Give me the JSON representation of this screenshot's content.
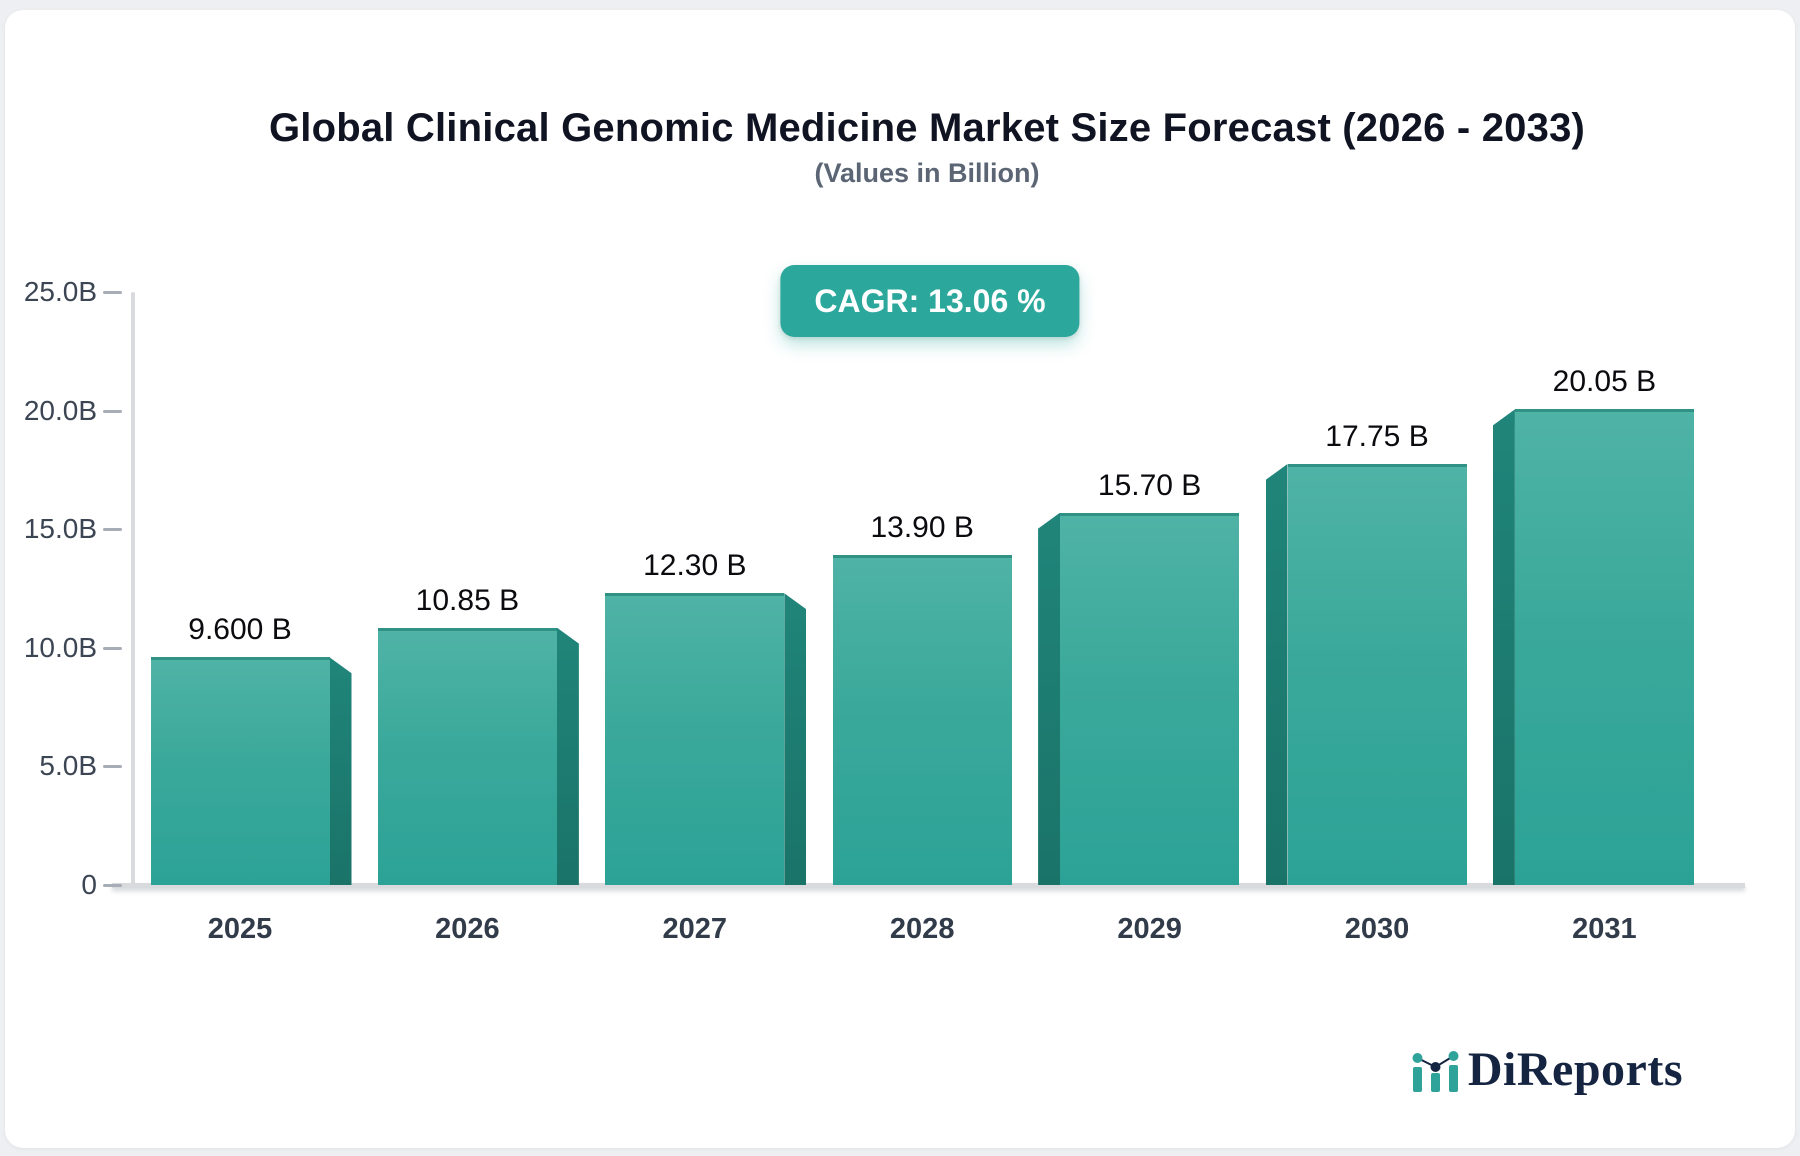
{
  "title": "Global Clinical Genomic Medicine Market Size Forecast (2026 - 2033)",
  "subtitle": "(Values in Billion)",
  "badge": {
    "label": "CAGR: 13.06 %"
  },
  "chart_data": {
    "type": "bar",
    "title": "Global Clinical Genomic Medicine Market Size Forecast (2026 - 2033)",
    "subtitle": "(Values in Billion)",
    "cagr_percent": 13.06,
    "categories": [
      "2025",
      "2026",
      "2027",
      "2028",
      "2029",
      "2030",
      "2031"
    ],
    "values": [
      9.6,
      10.85,
      12.3,
      13.9,
      15.7,
      17.75,
      20.05
    ],
    "bar_labels": [
      "9.600 B",
      "10.85 B",
      "12.30 B",
      "13.90 B",
      "15.70 B",
      "17.75 B",
      "20.05 B"
    ],
    "yticks": [
      {
        "value": 25,
        "label": "25.0B"
      },
      {
        "value": 20,
        "label": "20.0B"
      },
      {
        "value": 15,
        "label": "15.0B"
      },
      {
        "value": 10,
        "label": "10.0B"
      },
      {
        "value": 5,
        "label": "5.0B"
      },
      {
        "value": 0,
        "label": "0"
      }
    ],
    "ylim": [
      0,
      25
    ],
    "xlabel": "",
    "ylabel": "",
    "grid": false,
    "legend": false,
    "colors": {
      "bar_face_top": "#4fb3a6",
      "bar_face_bottom": "#2ca296",
      "bar_side": "#1a7368",
      "badge_background": "#2ba89b",
      "axis_line": "#d8dade",
      "title_text": "#101322",
      "subtitle_text": "#5b6574"
    }
  },
  "logo": {
    "text": "DiReports",
    "icon": "mini-bar-chart-icon"
  }
}
